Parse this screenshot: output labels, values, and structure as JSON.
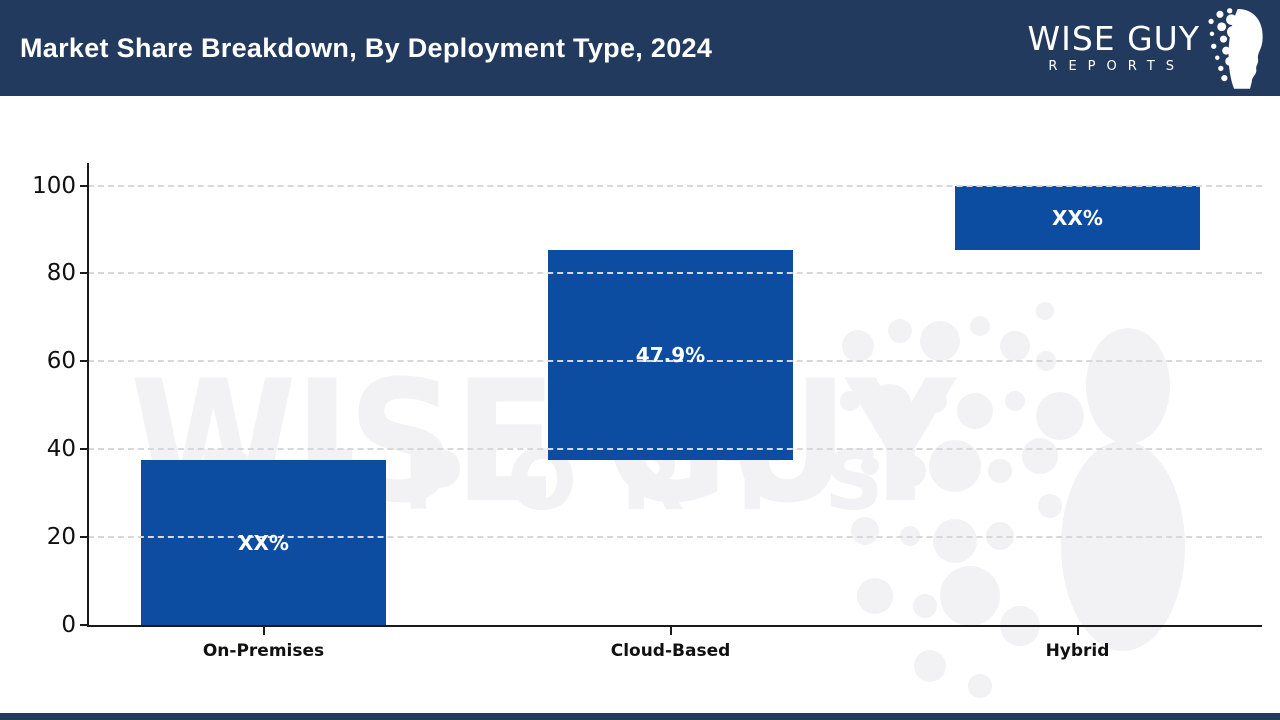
{
  "header": {
    "title": "Market Share Breakdown, By Deployment Type, 2024",
    "logo": {
      "line1": "WISE GUY",
      "line2": "REPORTS"
    }
  },
  "watermark": {
    "line1": "WISE GUY",
    "line2": "REPORTS"
  },
  "chart_data": {
    "type": "bar",
    "subtype": "waterfall-stacked",
    "title": "Market Share Breakdown, By Deployment Type, 2024",
    "categories": [
      "On-Premises",
      "Cloud-Based",
      "Hybrid"
    ],
    "segments": [
      {
        "category": "On-Premises",
        "start": 0,
        "end": 37.5,
        "value": 37.5,
        "label": "XX%"
      },
      {
        "category": "Cloud-Based",
        "start": 37.5,
        "end": 85.4,
        "value": 47.9,
        "label": "47.9%"
      },
      {
        "category": "Hybrid",
        "start": 85.4,
        "end": 100,
        "value": 14.6,
        "label": "XX%"
      }
    ],
    "xlabel": "",
    "ylabel": "",
    "yticks": [
      0,
      20,
      40,
      60,
      80,
      100
    ],
    "ylim": [
      0,
      105
    ],
    "grid": "horizontal-dashed",
    "legend": "none",
    "bar_color": "#0c4da2",
    "bar_label_color": "#ffffff",
    "axis_color": "#1a1a1a",
    "gridline_color": "#d8d8d8"
  },
  "colors": {
    "header_bg": "#233a5f",
    "footer_bg": "#233a5f",
    "watermark": "#f2f2f4"
  }
}
